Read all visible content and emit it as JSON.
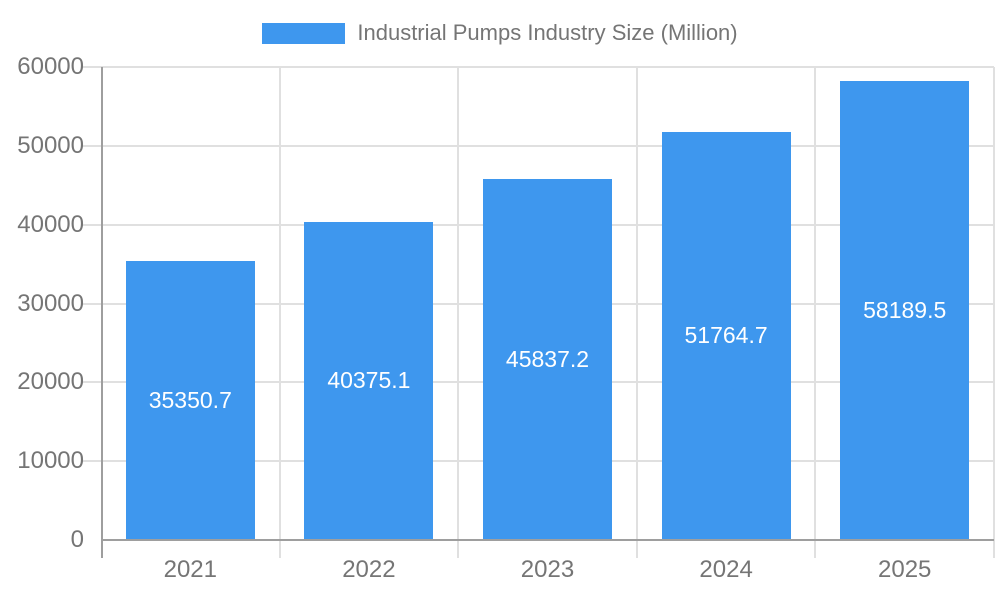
{
  "chart_data": {
    "type": "bar",
    "title": "Industrial Pumps Industry Size (Million)",
    "xlabel": "",
    "ylabel": "",
    "categories": [
      "2021",
      "2022",
      "2023",
      "2024",
      "2025"
    ],
    "series": [
      {
        "name": "Industrial Pumps Industry Size (Million)",
        "values": [
          35350.7,
          40375.1,
          45837.2,
          51764.7,
          58189.5
        ]
      }
    ],
    "value_labels": [
      "35350.7",
      "40375.1",
      "45837.2",
      "51764.7",
      "58189.5"
    ],
    "value_label_position": "inside-center",
    "ylim": [
      0,
      60000
    ],
    "yticks": [
      0,
      10000,
      20000,
      30000,
      40000,
      50000,
      60000
    ],
    "ytick_labels": [
      "0",
      "10000",
      "20000",
      "30000",
      "40000",
      "50000",
      "60000"
    ],
    "grid": true,
    "legend_position": "top-center"
  },
  "colors": {
    "bar": "#3E97EE",
    "axis_text": "#757575",
    "value_text": "#ffffff",
    "gridline": "#e0e0e0",
    "axis_line": "#9e9e9e",
    "background": "#ffffff"
  }
}
